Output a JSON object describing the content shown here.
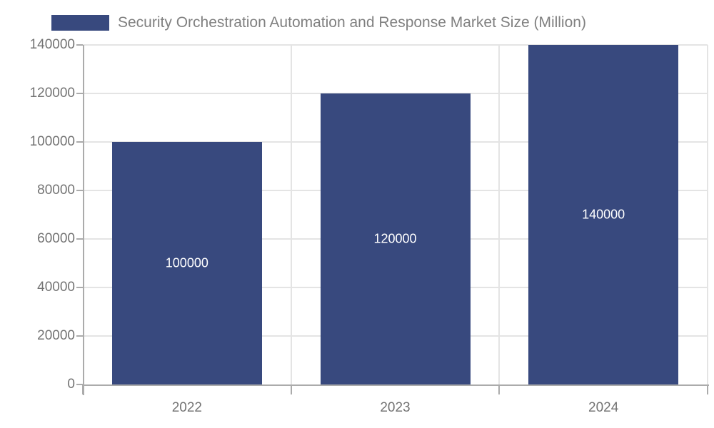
{
  "chart_data": {
    "type": "bar",
    "title": "Security Orchestration Automation and Response Market Size (Million)",
    "legend": {
      "label": "Security Orchestration Automation and Response Market Size (Million)",
      "position": "top-left"
    },
    "categories": [
      "2022",
      "2023",
      "2024"
    ],
    "values": [
      100000,
      120000,
      140000
    ],
    "value_labels": [
      "100000",
      "120000",
      "140000"
    ],
    "xlabel": "",
    "ylabel": "",
    "ylim": [
      0,
      140000
    ],
    "yticks": [
      0,
      20000,
      40000,
      60000,
      80000,
      100000,
      120000,
      140000
    ],
    "ytick_labels": [
      "0",
      "20000",
      "40000",
      "60000",
      "80000",
      "100000",
      "120000",
      "140000"
    ],
    "grid": true,
    "bar_color": "#38497E",
    "colors": {
      "bar": "#38497E",
      "grid_line": "#e4e4e4",
      "axis_line": "#ababab",
      "tick_label": "#737373",
      "title_text": "#808080",
      "value_label": "#ffffff"
    }
  }
}
